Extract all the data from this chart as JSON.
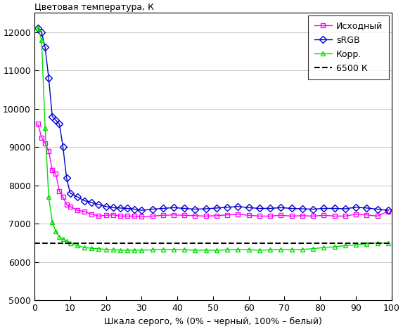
{
  "title": "Цветовая температура, К",
  "xlabel": "Шкала серого, % (0% – черный, 100% – белый)",
  "ylim": [
    5000,
    12500
  ],
  "xlim": [
    0,
    100
  ],
  "yticks": [
    5000,
    6000,
    7000,
    8000,
    9000,
    10000,
    11000,
    12000
  ],
  "xticks": [
    0,
    10,
    20,
    30,
    40,
    50,
    60,
    70,
    80,
    90,
    100
  ],
  "hline_value": 6500,
  "hline_label": "6500 К",
  "series": {
    "ishodny": {
      "label": "Исходный",
      "color": "#ff00ff",
      "marker": "s",
      "markersize": 4,
      "linewidth": 1.0,
      "x": [
        1,
        2,
        3,
        4,
        5,
        6,
        7,
        8,
        9,
        10,
        12,
        14,
        16,
        18,
        20,
        22,
        24,
        26,
        28,
        30,
        33,
        36,
        39,
        42,
        45,
        48,
        51,
        54,
        57,
        60,
        63,
        66,
        69,
        72,
        75,
        78,
        81,
        84,
        87,
        90,
        93,
        96,
        99
      ],
      "y": [
        9600,
        9250,
        9100,
        8900,
        8400,
        8300,
        7850,
        7700,
        7500,
        7450,
        7350,
        7320,
        7250,
        7200,
        7220,
        7230,
        7200,
        7200,
        7200,
        7180,
        7200,
        7220,
        7230,
        7220,
        7210,
        7200,
        7210,
        7230,
        7250,
        7220,
        7200,
        7200,
        7220,
        7200,
        7210,
        7200,
        7220,
        7200,
        7200,
        7250,
        7230,
        7200,
        7320
      ]
    },
    "srgb": {
      "label": "sRGB",
      "color": "#0000cd",
      "marker": "D",
      "markersize": 5,
      "linewidth": 1.0,
      "x": [
        1,
        2,
        3,
        4,
        5,
        6,
        7,
        8,
        9,
        10,
        12,
        14,
        16,
        18,
        20,
        22,
        24,
        26,
        28,
        30,
        33,
        36,
        39,
        42,
        45,
        48,
        51,
        54,
        57,
        60,
        63,
        66,
        69,
        72,
        75,
        78,
        81,
        84,
        87,
        90,
        93,
        96,
        99
      ],
      "y": [
        12100,
        12000,
        11600,
        10800,
        9800,
        9700,
        9600,
        9000,
        8200,
        7800,
        7700,
        7600,
        7550,
        7500,
        7450,
        7420,
        7410,
        7400,
        7380,
        7350,
        7380,
        7400,
        7420,
        7400,
        7380,
        7390,
        7410,
        7430,
        7450,
        7420,
        7400,
        7400,
        7420,
        7400,
        7390,
        7380,
        7400,
        7400,
        7390,
        7430,
        7410,
        7380,
        7350
      ]
    },
    "korr": {
      "label": "Корр.",
      "color": "#00dd00",
      "marker": "^",
      "markersize": 5,
      "linewidth": 1.0,
      "x": [
        1,
        2,
        3,
        4,
        5,
        6,
        7,
        8,
        9,
        10,
        12,
        14,
        16,
        18,
        20,
        22,
        24,
        26,
        28,
        30,
        33,
        36,
        39,
        42,
        45,
        48,
        51,
        54,
        57,
        60,
        63,
        66,
        69,
        72,
        75,
        78,
        81,
        84,
        87,
        90,
        93,
        96,
        99
      ],
      "y": [
        12100,
        11800,
        9500,
        7700,
        7050,
        6800,
        6650,
        6600,
        6550,
        6500,
        6430,
        6380,
        6360,
        6350,
        6330,
        6320,
        6310,
        6310,
        6310,
        6310,
        6320,
        6330,
        6330,
        6320,
        6310,
        6310,
        6310,
        6320,
        6330,
        6320,
        6310,
        6320,
        6330,
        6320,
        6330,
        6350,
        6380,
        6400,
        6430,
        6450,
        6480,
        6500,
        6490
      ]
    }
  },
  "legend_loc": "upper right",
  "bg_color": "#ffffff",
  "grid_color": "#c0c0c0",
  "font_size": 9,
  "title_fontsize": 9,
  "xlabel_fontsize": 9
}
